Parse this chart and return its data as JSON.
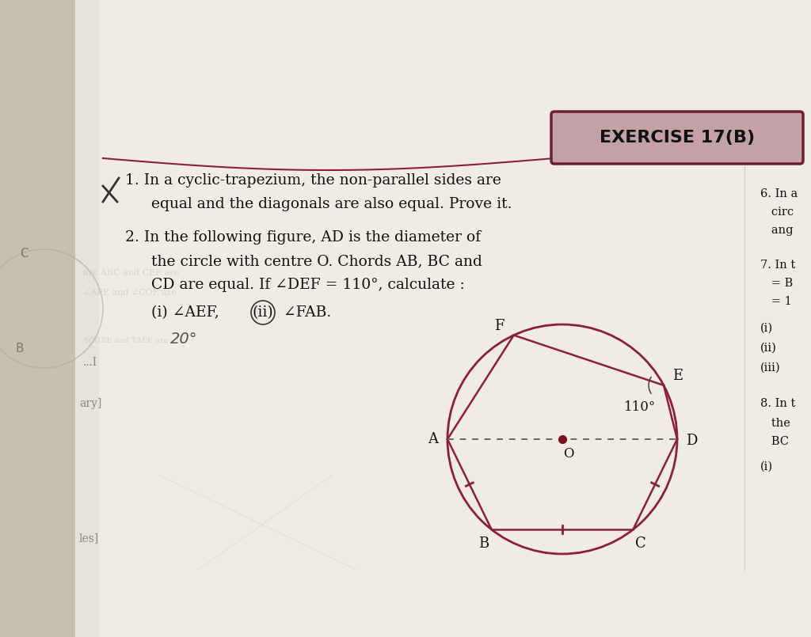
{
  "background_color": "#d8cfc0",
  "page_color": "#f0ece4",
  "left_strip_color": "#c8bfb0",
  "top_green_color": "#6b7a3a",
  "title_box_text": "EXERCISE 17(B)",
  "title_box_bg": "#c4a0a8",
  "title_box_border": "#6b2030",
  "line_color": "#8b2035",
  "problem1_line1": "1. In a cyclic-trapezium, the non-parallel sides are",
  "problem1_line2": "   equal and the diagonals are also equal. Prove it.",
  "problem2_line1": "2. In the following figure, AD is the diameter of",
  "problem2_line2": "   the circle with centre O. Chords AB, BC and",
  "problem2_line3": "   CD are equal. If ∠DEF = 110°, calculate :",
  "problem2_sub1": "   (i) ∠AEF,",
  "problem2_sub2": "(ii)",
  "problem2_sub3": " ∠FAB.",
  "annotation": "20°",
  "circle_color": "#8b2035",
  "dot_color": "#7a1020",
  "chord_color": "#8b2035",
  "label_color": "#111111",
  "angle_label": "110°",
  "side_col": [
    "6. In a",
    "   circ",
    "   ang",
    "7. In t",
    "   = B",
    "   = 1",
    "(i)",
    "(ii)",
    "(iii)",
    "8. In t",
    "   the",
    "   BC",
    "(i)"
  ],
  "left_labels": [
    "C",
    "B"
  ],
  "margin_texts": [
    "...I",
    "ary]",
    "les]"
  ],
  "fig_width": 10.24,
  "fig_height": 8.05,
  "dpi": 100
}
